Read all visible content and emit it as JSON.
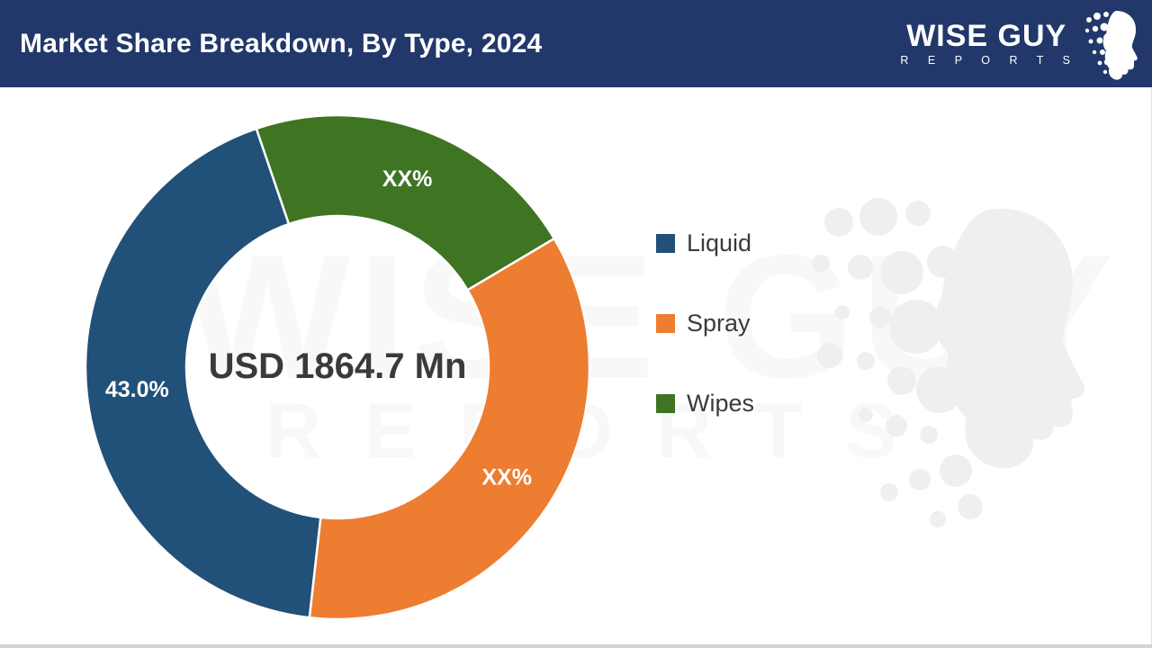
{
  "header": {
    "title": "Market Share Breakdown, By Type, 2024",
    "logo": {
      "name_line": "WISE GUY",
      "sub_line": "R E P O R T S"
    }
  },
  "watermark": {
    "big_text": "WISE GUY",
    "sub_text": "R E P O R T S"
  },
  "chart_data": {
    "type": "pie",
    "subtype": "donut",
    "title": "Market Share Breakdown, By Type, 2024",
    "center_label": "USD 1864.7 Mn",
    "legend_position": "right",
    "inner_radius_ratio": 0.6,
    "start_angle_deg": -18.8,
    "direction": "clockwise",
    "draw_order": [
      "Wipes",
      "Spray",
      "Liquid"
    ],
    "series": [
      {
        "name": "Liquid",
        "value": 43.0,
        "display_label": "43.0%",
        "color": "#215078"
      },
      {
        "name": "Spray",
        "value": 35.3,
        "display_label": "XX%",
        "color": "#ed7d31"
      },
      {
        "name": "Wipes",
        "value": 21.7,
        "display_label": "XX%",
        "color": "#3f7423"
      }
    ]
  },
  "icons": {
    "logo_face": "face-profile-dots-icon",
    "watermark_face": "face-profile-dots-watermark-icon"
  },
  "colors": {
    "header_bg": "#22386a",
    "bottom_bar": "#d4d4d4",
    "center_text": "#3a3a3a",
    "legend_text": "#3a3a3a"
  }
}
